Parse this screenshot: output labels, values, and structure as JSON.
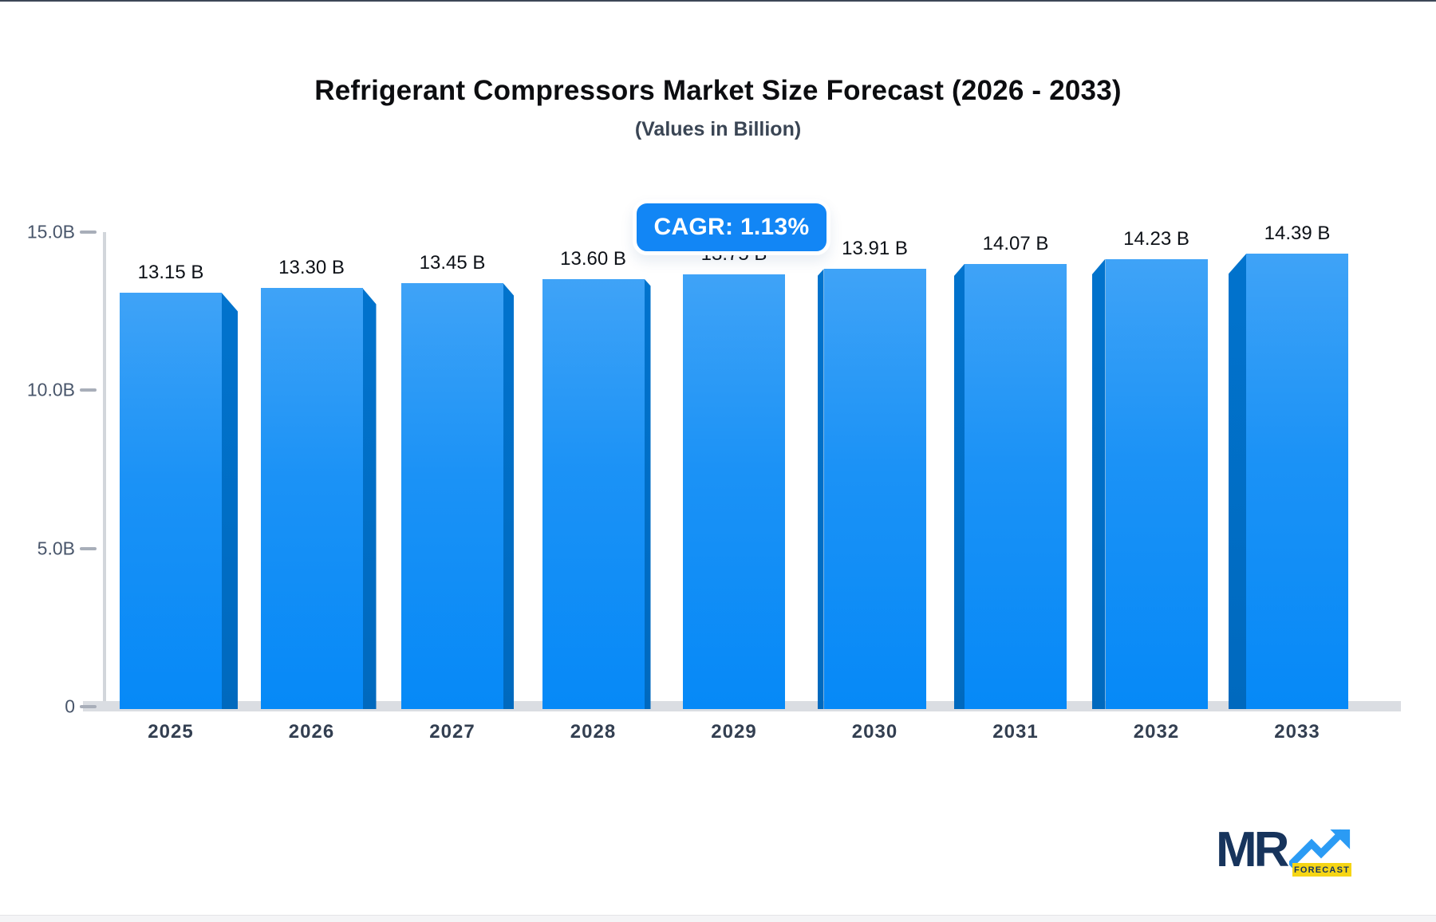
{
  "chart_data": {
    "type": "bar",
    "title": "Refrigerant Compressors Market Size Forecast (2026 - 2033)",
    "subtitle": "(Values in Billion)",
    "categories": [
      "2025",
      "2026",
      "2027",
      "2028",
      "2029",
      "2030",
      "2031",
      "2032",
      "2033"
    ],
    "values": [
      13.15,
      13.3,
      13.45,
      13.6,
      13.75,
      13.91,
      14.07,
      14.23,
      14.39
    ],
    "value_labels": [
      "13.15 B",
      "13.30 B",
      "13.45 B",
      "13.60 B",
      "13.75 B",
      "13.91 B",
      "14.07 B",
      "14.23 B",
      "14.39 B"
    ],
    "annotation": "CAGR: 1.13%",
    "ylim": [
      0,
      15
    ],
    "yticks": [
      {
        "value": 0,
        "label": "0"
      },
      {
        "value": 5,
        "label": "5.0B"
      },
      {
        "value": 10,
        "label": "10.0B"
      },
      {
        "value": 15,
        "label": "15.0B"
      }
    ],
    "grid": "off",
    "legend": "none",
    "colors": {
      "bar_gradient_top": "#3fa3f7",
      "bar_gradient_bottom": "#0689f7",
      "bar_side_face": "#0070c6",
      "badge_background": "#1286f5",
      "badge_text": "#ffffff",
      "axis_text": "#49566b",
      "category_text": "#333f51"
    }
  },
  "logo": {
    "mr": "MR",
    "forecast": "FORECAST",
    "colors": {
      "navy": "#17345c",
      "blue": "#2b9bf4",
      "yellow": "#f6d515"
    }
  }
}
